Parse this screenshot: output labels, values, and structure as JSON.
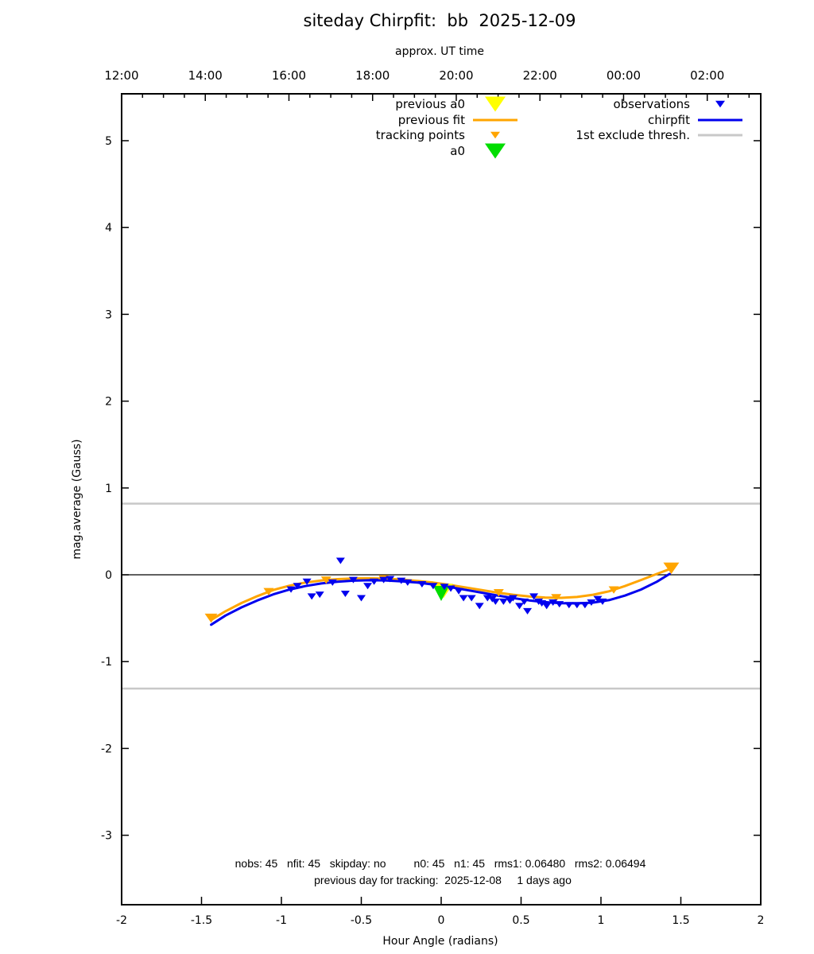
{
  "window": {
    "title": "siteday Chirpfit:  bb  2025-12-09"
  },
  "chart_data": {
    "type": "scatter",
    "title": "siteday Chirpfit:  bb  2025-12-09",
    "x2label": "approx. UT time",
    "xlabel": "Hour Angle (radians)",
    "ylabel": "mag.average (Gauss)",
    "x_range": [
      -2,
      2
    ],
    "y_range": [
      -3.8,
      5.54
    ],
    "grid": false,
    "x_ticks": [
      {
        "v": -2,
        "label": "-2"
      },
      {
        "v": -1.5,
        "label": "-1.5"
      },
      {
        "v": -1,
        "label": "-1"
      },
      {
        "v": -0.5,
        "label": "-0.5"
      },
      {
        "v": 0,
        "label": "0"
      },
      {
        "v": 0.5,
        "label": "0.5"
      },
      {
        "v": 1,
        "label": "1"
      },
      {
        "v": 1.5,
        "label": "1.5"
      },
      {
        "v": 2,
        "label": "2"
      }
    ],
    "y_ticks": [
      {
        "v": -3,
        "label": "-3"
      },
      {
        "v": -2,
        "label": "-2"
      },
      {
        "v": -1,
        "label": "-1"
      },
      {
        "v": 0,
        "label": "0"
      },
      {
        "v": 1,
        "label": "1"
      },
      {
        "v": 2,
        "label": "2"
      },
      {
        "v": 3,
        "label": "3"
      },
      {
        "v": 4,
        "label": "4"
      },
      {
        "v": 5,
        "label": "5"
      }
    ],
    "ut_ticks": [
      {
        "v": -2.0,
        "label": "12:00"
      },
      {
        "v": -1.4764,
        "label": "14:00"
      },
      {
        "v": -0.9528,
        "label": "16:00"
      },
      {
        "v": -0.4292,
        "label": "18:00"
      },
      {
        "v": 0.0944,
        "label": "20:00"
      },
      {
        "v": 0.618,
        "label": "22:00"
      },
      {
        "v": 1.1416,
        "label": "00:00"
      },
      {
        "v": 1.6652,
        "label": "02:00"
      }
    ],
    "ut_minor_step": 0.1309,
    "zero_line": 0,
    "thresholds": {
      "values": [
        0.82,
        -1.31
      ],
      "color": "#c8c8c8"
    },
    "series": {
      "previous_fit": {
        "name": "previous fit",
        "color": "#ffa500",
        "points": [
          [
            -1.44,
            -0.52
          ],
          [
            -1.35,
            -0.42
          ],
          [
            -1.25,
            -0.325
          ],
          [
            -1.15,
            -0.245
          ],
          [
            -1.05,
            -0.175
          ],
          [
            -0.95,
            -0.125
          ],
          [
            -0.85,
            -0.09
          ],
          [
            -0.75,
            -0.065
          ],
          [
            -0.65,
            -0.05
          ],
          [
            -0.55,
            -0.042
          ],
          [
            -0.45,
            -0.04
          ],
          [
            -0.35,
            -0.045
          ],
          [
            -0.25,
            -0.055
          ],
          [
            -0.15,
            -0.07
          ],
          [
            -0.05,
            -0.09
          ],
          [
            0.05,
            -0.115
          ],
          [
            0.15,
            -0.145
          ],
          [
            0.25,
            -0.175
          ],
          [
            0.35,
            -0.205
          ],
          [
            0.45,
            -0.23
          ],
          [
            0.55,
            -0.25
          ],
          [
            0.65,
            -0.262
          ],
          [
            0.75,
            -0.265
          ],
          [
            0.85,
            -0.255
          ],
          [
            0.95,
            -0.23
          ],
          [
            1.05,
            -0.19
          ],
          [
            1.15,
            -0.13
          ],
          [
            1.25,
            -0.06
          ],
          [
            1.35,
            0.01
          ],
          [
            1.45,
            0.08
          ]
        ]
      },
      "chirpfit": {
        "name": "chirpfit",
        "color": "#0000ee",
        "points": [
          [
            -1.44,
            -0.575
          ],
          [
            -1.35,
            -0.47
          ],
          [
            -1.25,
            -0.375
          ],
          [
            -1.15,
            -0.295
          ],
          [
            -1.05,
            -0.225
          ],
          [
            -0.95,
            -0.17
          ],
          [
            -0.85,
            -0.13
          ],
          [
            -0.75,
            -0.1
          ],
          [
            -0.65,
            -0.08
          ],
          [
            -0.55,
            -0.068
          ],
          [
            -0.45,
            -0.063
          ],
          [
            -0.35,
            -0.065
          ],
          [
            -0.25,
            -0.075
          ],
          [
            -0.15,
            -0.09
          ],
          [
            -0.05,
            -0.112
          ],
          [
            0.05,
            -0.14
          ],
          [
            0.15,
            -0.172
          ],
          [
            0.25,
            -0.205
          ],
          [
            0.35,
            -0.238
          ],
          [
            0.45,
            -0.268
          ],
          [
            0.55,
            -0.295
          ],
          [
            0.65,
            -0.315
          ],
          [
            0.75,
            -0.328
          ],
          [
            0.85,
            -0.33
          ],
          [
            0.95,
            -0.32
          ],
          [
            1.05,
            -0.292
          ],
          [
            1.15,
            -0.24
          ],
          [
            1.25,
            -0.17
          ],
          [
            1.35,
            -0.08
          ],
          [
            1.43,
            0.01
          ]
        ]
      },
      "tracking_points": {
        "name": "tracking points",
        "color": "#ffa500",
        "points": [
          [
            -1.44,
            -0.5
          ],
          [
            -1.08,
            -0.195
          ],
          [
            -0.72,
            -0.062
          ],
          [
            -0.36,
            -0.046
          ],
          [
            0.36,
            -0.208
          ],
          [
            0.72,
            -0.265
          ],
          [
            1.08,
            -0.175
          ],
          [
            1.44,
            0.075
          ]
        ]
      },
      "previous_a0": {
        "name": "previous a0",
        "color": "#ffff00",
        "point": [
          0.015,
          -0.185
        ]
      },
      "a0": {
        "name": "a0",
        "color": "#00dd00",
        "point": [
          0.0,
          -0.215
        ]
      },
      "observations": {
        "name": "observations",
        "color": "#0000ee",
        "points": [
          [
            -0.94,
            -0.17
          ],
          [
            -0.9,
            -0.13
          ],
          [
            -0.84,
            -0.08
          ],
          [
            -0.81,
            -0.25
          ],
          [
            -0.76,
            -0.23
          ],
          [
            -0.68,
            -0.09
          ],
          [
            -0.63,
            0.16
          ],
          [
            -0.6,
            -0.22
          ],
          [
            -0.55,
            -0.06
          ],
          [
            -0.5,
            -0.27
          ],
          [
            -0.46,
            -0.13
          ],
          [
            -0.42,
            -0.08
          ],
          [
            -0.36,
            -0.06
          ],
          [
            -0.32,
            -0.05
          ],
          [
            -0.25,
            -0.07
          ],
          [
            -0.21,
            -0.09
          ],
          [
            -0.12,
            -0.11
          ],
          [
            -0.05,
            -0.13
          ],
          [
            0.02,
            -0.14
          ],
          [
            0.06,
            -0.16
          ],
          [
            0.11,
            -0.19
          ],
          [
            0.14,
            -0.27
          ],
          [
            0.19,
            -0.27
          ],
          [
            0.24,
            -0.36
          ],
          [
            0.29,
            -0.27
          ],
          [
            0.32,
            -0.28
          ],
          [
            0.34,
            -0.31
          ],
          [
            0.39,
            -0.31
          ],
          [
            0.43,
            -0.3
          ],
          [
            0.45,
            -0.27
          ],
          [
            0.49,
            -0.36
          ],
          [
            0.52,
            -0.31
          ],
          [
            0.54,
            -0.42
          ],
          [
            0.58,
            -0.25
          ],
          [
            0.61,
            -0.31
          ],
          [
            0.63,
            -0.33
          ],
          [
            0.66,
            -0.36
          ],
          [
            0.7,
            -0.32
          ],
          [
            0.74,
            -0.34
          ],
          [
            0.8,
            -0.35
          ],
          [
            0.85,
            -0.35
          ],
          [
            0.9,
            -0.35
          ],
          [
            0.94,
            -0.32
          ],
          [
            0.98,
            -0.28
          ],
          [
            1.01,
            -0.31
          ]
        ]
      }
    },
    "legend": {
      "position": "top-inside",
      "left": [
        {
          "label": "previous a0",
          "marker": "triangle-large",
          "color": "#ffff00"
        },
        {
          "label": "previous fit",
          "marker": "line",
          "color": "#ffa500"
        },
        {
          "label": "tracking points",
          "marker": "triangle-small",
          "color": "#ffa500"
        },
        {
          "label": "a0",
          "marker": "triangle-large",
          "color": "#00dd00"
        }
      ],
      "right": [
        {
          "label": "observations",
          "marker": "triangle-small",
          "color": "#0000ee"
        },
        {
          "label": "chirpfit",
          "marker": "line",
          "color": "#0000ee"
        },
        {
          "label": "1st exclude thresh.",
          "marker": "line",
          "color": "#c8c8c8"
        }
      ]
    },
    "stats": {
      "nobs": "45",
      "nfit": "45",
      "skipday": "no",
      "n0": "45",
      "n1": "45",
      "rms1": "0.06480",
      "rms2": "0.06494",
      "previous_day_for_tracking": "2025-12-08",
      "days_ago": "1 days ago"
    },
    "stats_line1": "nobs: 45   nfit: 45   skipday: no         n0: 45   n1: 45   rms1: 0.06480   rms2: 0.06494",
    "stats_line2": "previous day for tracking:  2025-12-08     1 days ago"
  }
}
